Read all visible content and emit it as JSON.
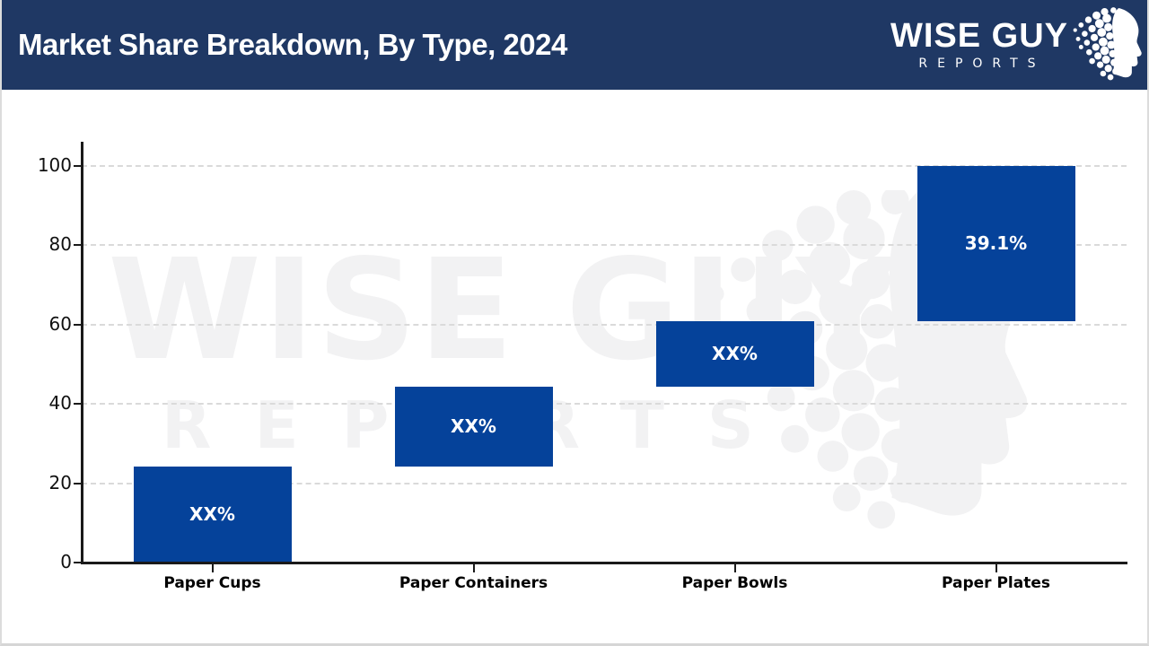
{
  "header": {
    "title": "Market Share Breakdown, By Type, 2024",
    "logo": {
      "line1": "WISE GUY",
      "line2": "REPORTS"
    }
  },
  "watermark": {
    "line1": "WISE GUY",
    "line2": "REPORTS"
  },
  "colors": {
    "header_bg": "#1f3864",
    "bar": "#05429a",
    "axis": "#1a1a1a",
    "gridline": "#dadada",
    "bar_label": "#ffffff",
    "watermark": "#f2f2f3"
  },
  "chart_data": {
    "type": "waterfall",
    "title": "Market Share Breakdown, By Type, 2024",
    "categories": [
      "Paper Cups",
      "Paper Containers",
      "Paper Bowls",
      "Paper Plates"
    ],
    "series": [
      {
        "category": "Paper Cups",
        "start": 0,
        "end": 24.3,
        "label": "XX%"
      },
      {
        "category": "Paper Containers",
        "start": 24.3,
        "end": 44.3,
        "label": "XX%"
      },
      {
        "category": "Paper Bowls",
        "start": 44.3,
        "end": 60.9,
        "label": "XX%"
      },
      {
        "category": "Paper Plates",
        "start": 60.9,
        "end": 100,
        "label": "39.1%",
        "value": 39.1
      }
    ],
    "ylim": [
      0,
      100
    ],
    "yticks": [
      0,
      20,
      40,
      60,
      80,
      100
    ],
    "xlabel": "",
    "ylabel": "",
    "grid": "dashed-horizontal",
    "legend": "none"
  }
}
